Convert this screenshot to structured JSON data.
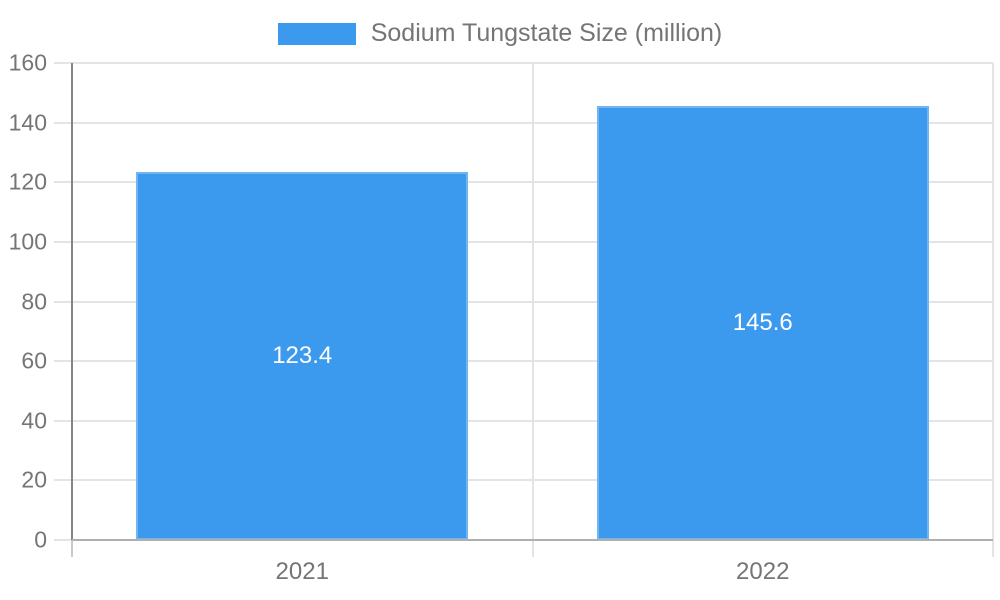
{
  "chart_data": {
    "type": "bar",
    "title": "",
    "legend": "Sodium Tungstate Size (million)",
    "legend_position": "top-center",
    "categories": [
      "2021",
      "2022"
    ],
    "values": [
      123.4,
      145.6
    ],
    "value_labels": [
      "123.4",
      "145.6"
    ],
    "xlabel": "",
    "ylabel": "",
    "ylim": [
      0,
      160
    ],
    "ytick_step": 20,
    "yticks": [
      0,
      20,
      40,
      60,
      80,
      100,
      120,
      140,
      160
    ],
    "grid": true,
    "bar_width_ratio": 0.72,
    "colors": {
      "bar": "#3B99EE",
      "bar_label": "#FFFFFF",
      "axis_text": "#757575",
      "legend_text": "#757575",
      "gridline": "#E4E4E4",
      "y_axis_line": "#868686",
      "baseline": "#AFAFAF",
      "background": "#FFFFFF"
    }
  }
}
